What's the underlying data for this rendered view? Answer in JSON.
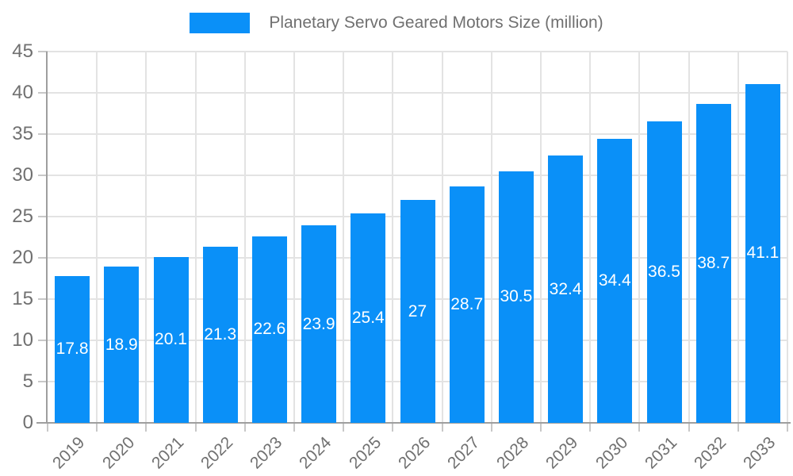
{
  "chart_data": {
    "type": "bar",
    "title": "Planetary Servo Geared Motors Size (million)",
    "legend": {
      "label": "Planetary Servo Geared Motors Size (million)",
      "position": "top"
    },
    "categories": [
      "2019",
      "2020",
      "2021",
      "2022",
      "2023",
      "2024",
      "2025",
      "2026",
      "2027",
      "2028",
      "2029",
      "2030",
      "2031",
      "2032",
      "2033"
    ],
    "values": [
      17.8,
      18.9,
      20.1,
      21.3,
      22.6,
      23.9,
      25.4,
      27,
      28.7,
      30.5,
      32.4,
      34.4,
      36.5,
      38.7,
      41.1
    ],
    "value_labels_inside_bars": true,
    "xlabel": "",
    "ylabel": "",
    "ylim": [
      0,
      45
    ],
    "yticks": [
      0,
      5,
      10,
      15,
      20,
      25,
      30,
      35,
      40,
      45
    ],
    "x_label_rotation_deg": -45,
    "grid": true,
    "colors": {
      "bar": "#0A90F8",
      "value_label": "#FFFFFF",
      "axis_text": "#707070",
      "legend_text": "#707070",
      "grid_line": "#E3E3E3",
      "axis_line": "#9E9E9E",
      "tick_line": "#C8C8C8",
      "background": "#FFFFFF"
    }
  }
}
